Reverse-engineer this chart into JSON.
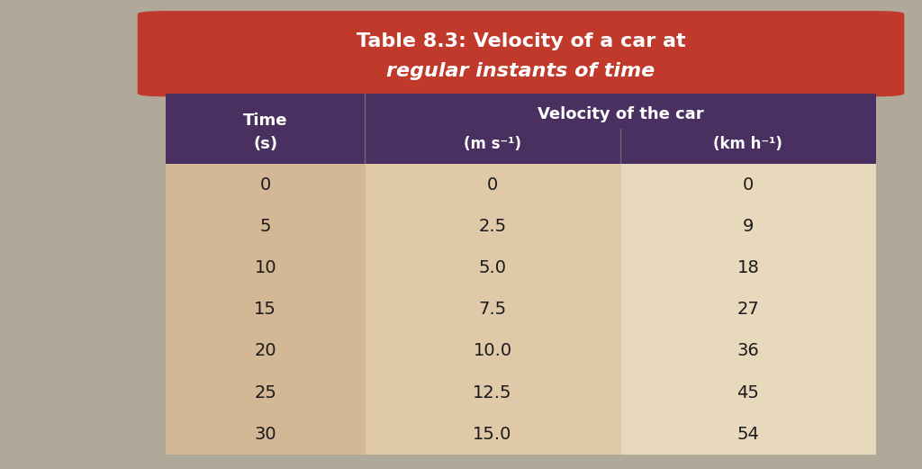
{
  "title_line1": "Table 8.3: Velocity of a car at",
  "title_line2": "regular instants of time",
  "col1_header_line1": "Time",
  "col1_header_line2": "(s)",
  "col2_header_line1": "Velocity of the car",
  "col2_header_line2": "(m s⁻¹)",
  "col3_header_line2": "(km h⁻¹)",
  "time": [
    0,
    5,
    10,
    15,
    20,
    25,
    30
  ],
  "velocity_ms": [
    "0",
    "2.5",
    "5.0",
    "7.5",
    "10.0",
    "12.5",
    "15.0"
  ],
  "velocity_kmh": [
    "0",
    "9",
    "18",
    "27",
    "36",
    "45",
    "54"
  ],
  "title_bg": "#c0392b",
  "header_bg": "#4a3060",
  "data_bg_col1": "#d4b896",
  "data_bg_col2": "#dfc9a8",
  "data_bg_col3": "#e8d8bc",
  "title_color": "#ffffff",
  "header_color": "#ffffff",
  "data_color": "#1a1a1a",
  "title_fontsize": 16,
  "header_fontsize": 13,
  "data_fontsize": 14
}
